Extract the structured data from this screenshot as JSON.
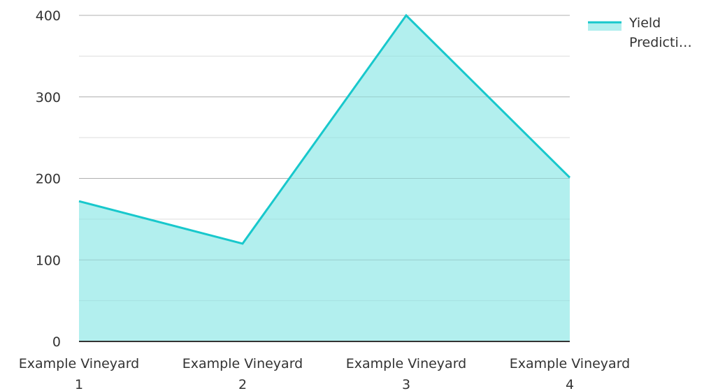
{
  "chart_data": {
    "type": "area",
    "title": "",
    "xlabel": "",
    "ylabel": "",
    "categories": [
      [
        "Example Vineyard",
        "1"
      ],
      [
        "Example Vineyard",
        "2"
      ],
      [
        "Example Vineyard",
        "3"
      ],
      [
        "Example Vineyard",
        "4"
      ]
    ],
    "series": [
      {
        "name": "Yield Predicti…",
        "legend_lines": [
          "Yield",
          "Predicti…"
        ],
        "values": [
          172,
          120,
          400,
          201
        ],
        "line_color": "#18c8cc",
        "fill_color": "#b2efee"
      }
    ],
    "ylim": [
      0,
      400
    ],
    "yticks": [
      0,
      100,
      200,
      300,
      400
    ],
    "grid": true,
    "legend": "top-right"
  }
}
